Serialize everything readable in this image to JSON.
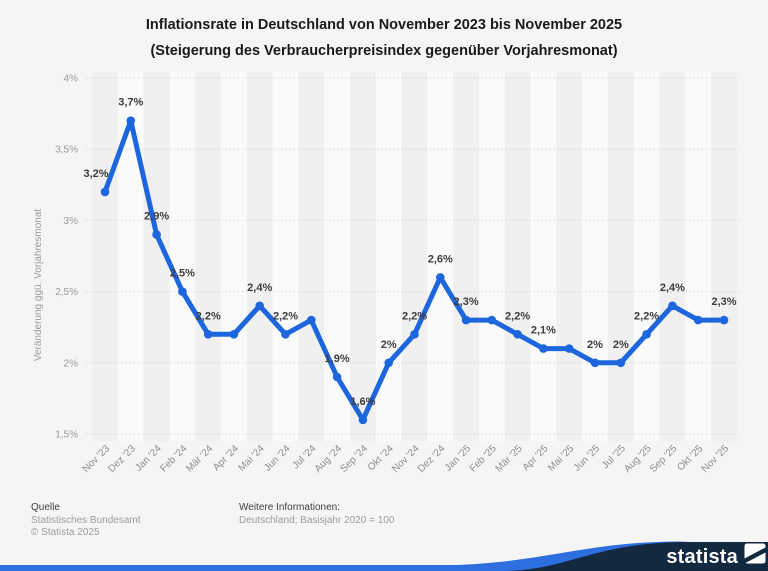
{
  "title": {
    "line1": "Inflationsrate in Deutschland von November 2023 bis November 2025",
    "line2": "(Steigerung des Verbraucherpreisindex gegenüber Vorjahresmonat)"
  },
  "chart_data": {
    "type": "line",
    "title": "Inflationsrate in Deutschland von November 2023 bis November 2025",
    "subtitle": "(Steigerung des Verbraucherpreisindex gegenüber Vorjahresmonat)",
    "ylabel": "Veränderung ggü. Vorjahresmonat",
    "xlabel": "",
    "ylim": [
      1.5,
      4.0
    ],
    "grid": "horizontal-dotted",
    "legend": "none",
    "categories": [
      "Nov '23",
      "Dez '23",
      "Jan '24",
      "Feb '24",
      "Mär '24",
      "Apr '24",
      "Mai '24",
      "Jun '24",
      "Jul '24",
      "Aug '24",
      "Sep '24",
      "Okt '24",
      "Nov '24",
      "Dez '24",
      "Jan '25",
      "Feb '25",
      "Mär '25",
      "Apr '25",
      "Mai '25",
      "Jun '25",
      "Jul '25",
      "Aug '25",
      "Sep '25",
      "Okt '25",
      "Nov '25"
    ],
    "values": [
      3.2,
      3.7,
      2.9,
      2.5,
      2.2,
      2.2,
      2.4,
      2.2,
      2.3,
      1.9,
      1.6,
      2.0,
      2.2,
      2.6,
      2.3,
      2.3,
      2.2,
      2.1,
      2.1,
      2.0,
      2.0,
      2.2,
      2.4,
      2.3,
      2.3
    ],
    "point_labels": [
      "3,2%",
      "3,7%",
      "2,9%",
      "2,5%",
      "2,2%",
      "",
      "2,4%",
      "2,2%",
      "",
      "1,9%",
      "1,6%",
      "2%",
      "2,2%",
      "2,6%",
      "2,3%",
      "",
      "2,2%",
      "2,1%",
      "",
      "2%",
      "2%",
      "2,2%",
      "2,4%",
      "",
      "2,3%"
    ],
    "yticks": [
      {
        "label": "4%",
        "value": 4.0
      },
      {
        "label": "3,5%",
        "value": 3.5
      },
      {
        "label": "3%",
        "value": 3.0
      },
      {
        "label": "2,5%",
        "value": 2.5
      },
      {
        "label": "2%",
        "value": 2.0
      },
      {
        "label": "1,5%",
        "value": 1.5
      }
    ]
  },
  "footer": {
    "source_label": "Quelle",
    "source": "Statistisches Bundesamt",
    "copyright": "© Statista 2025",
    "info_label": "Weitere Informationen:",
    "info": "Deutschland; Basisjahr 2020 = 100"
  },
  "branding": {
    "logo_text": "statista"
  },
  "colors": {
    "line": "#1d66dd",
    "band_dark": "#f0f0f1",
    "band_light": "#fafafa",
    "grid": "#c9c9c9",
    "swoosh_blue": "#2e6fe0",
    "navy": "#132940",
    "page_bg": "#f5f5f6"
  }
}
